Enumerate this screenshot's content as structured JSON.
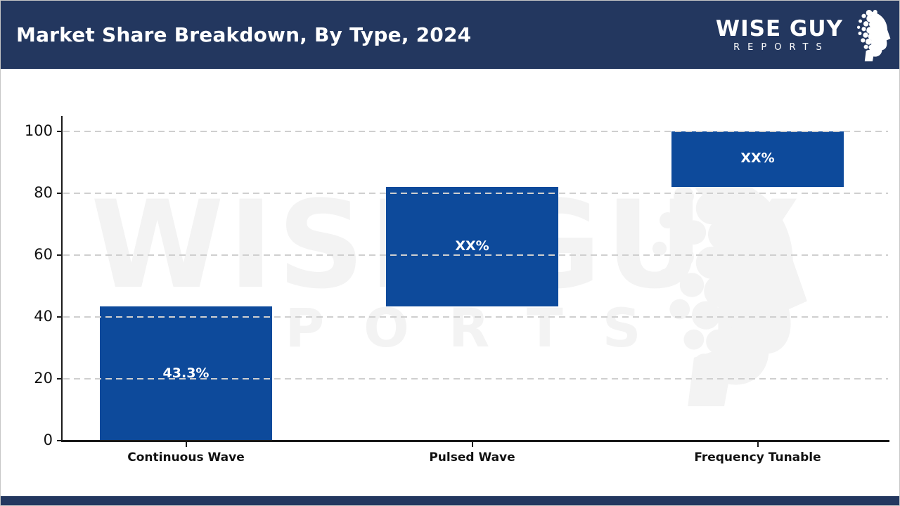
{
  "header": {
    "title": "Market Share Breakdown, By Type, 2024",
    "brand_line1": "WISE GUY",
    "brand_line2": "REPORTS"
  },
  "watermark": {
    "line1": "WISE GUY",
    "line2": "REPORTS"
  },
  "chart_data": {
    "type": "bar",
    "subtype": "stepped-waterfall-breakdown",
    "title": "Market Share Breakdown, By Type, 2024",
    "categories": [
      "Continuous Wave",
      "Pulsed Wave",
      "Frequency Tunable"
    ],
    "series": [
      {
        "name": "Market share",
        "segments": [
          {
            "category": "Continuous Wave",
            "from": 0,
            "to": 43.3,
            "label": "43.3%"
          },
          {
            "category": "Pulsed Wave",
            "from": 43.3,
            "to": 82,
            "label": "XX%"
          },
          {
            "category": "Frequency Tunable",
            "from": 82,
            "to": 100,
            "label": "XX%"
          }
        ]
      }
    ],
    "yticks": [
      0,
      20,
      40,
      60,
      80,
      100
    ],
    "ylim": [
      0,
      105
    ],
    "xlabel": "",
    "ylabel": "",
    "legend": "none",
    "grid": "horizontal-dashed",
    "bar_color": "#0d4a9b",
    "bar_label_color": "#ffffff"
  },
  "colors": {
    "header_bg": "#23375f",
    "footer_bg": "#23375f",
    "bar": "#0d4a9b",
    "gridline": "#cfcfcf",
    "watermark": "#f3f3f3",
    "axis": "#1a1a1a"
  }
}
